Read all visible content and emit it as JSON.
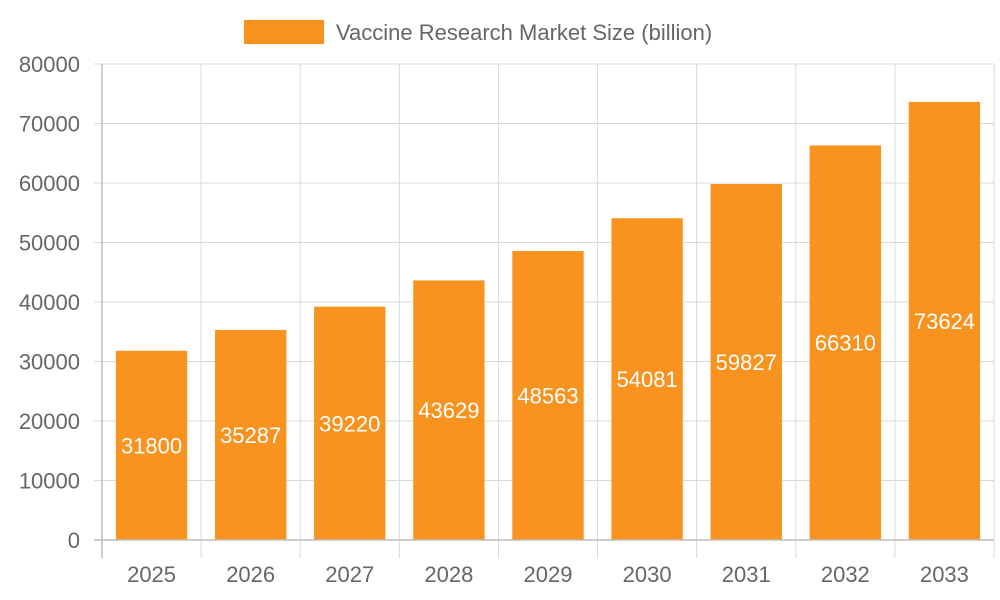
{
  "chart_data": {
    "type": "bar",
    "categories": [
      "2025",
      "2026",
      "2027",
      "2028",
      "2029",
      "2030",
      "2031",
      "2032",
      "2033"
    ],
    "series": [
      {
        "name": "Vaccine Research Market Size (billion)",
        "values": [
          31800,
          35287,
          39220,
          43629,
          48563,
          54081,
          59827,
          66310,
          73624
        ],
        "color": "#f7931e"
      }
    ],
    "y_ticks": [
      "0",
      "10000",
      "20000",
      "30000",
      "40000",
      "50000",
      "60000",
      "70000",
      "80000"
    ],
    "ylim": [
      0,
      80000
    ],
    "grid": true,
    "legend_position": "top-center",
    "data_labels": true
  }
}
